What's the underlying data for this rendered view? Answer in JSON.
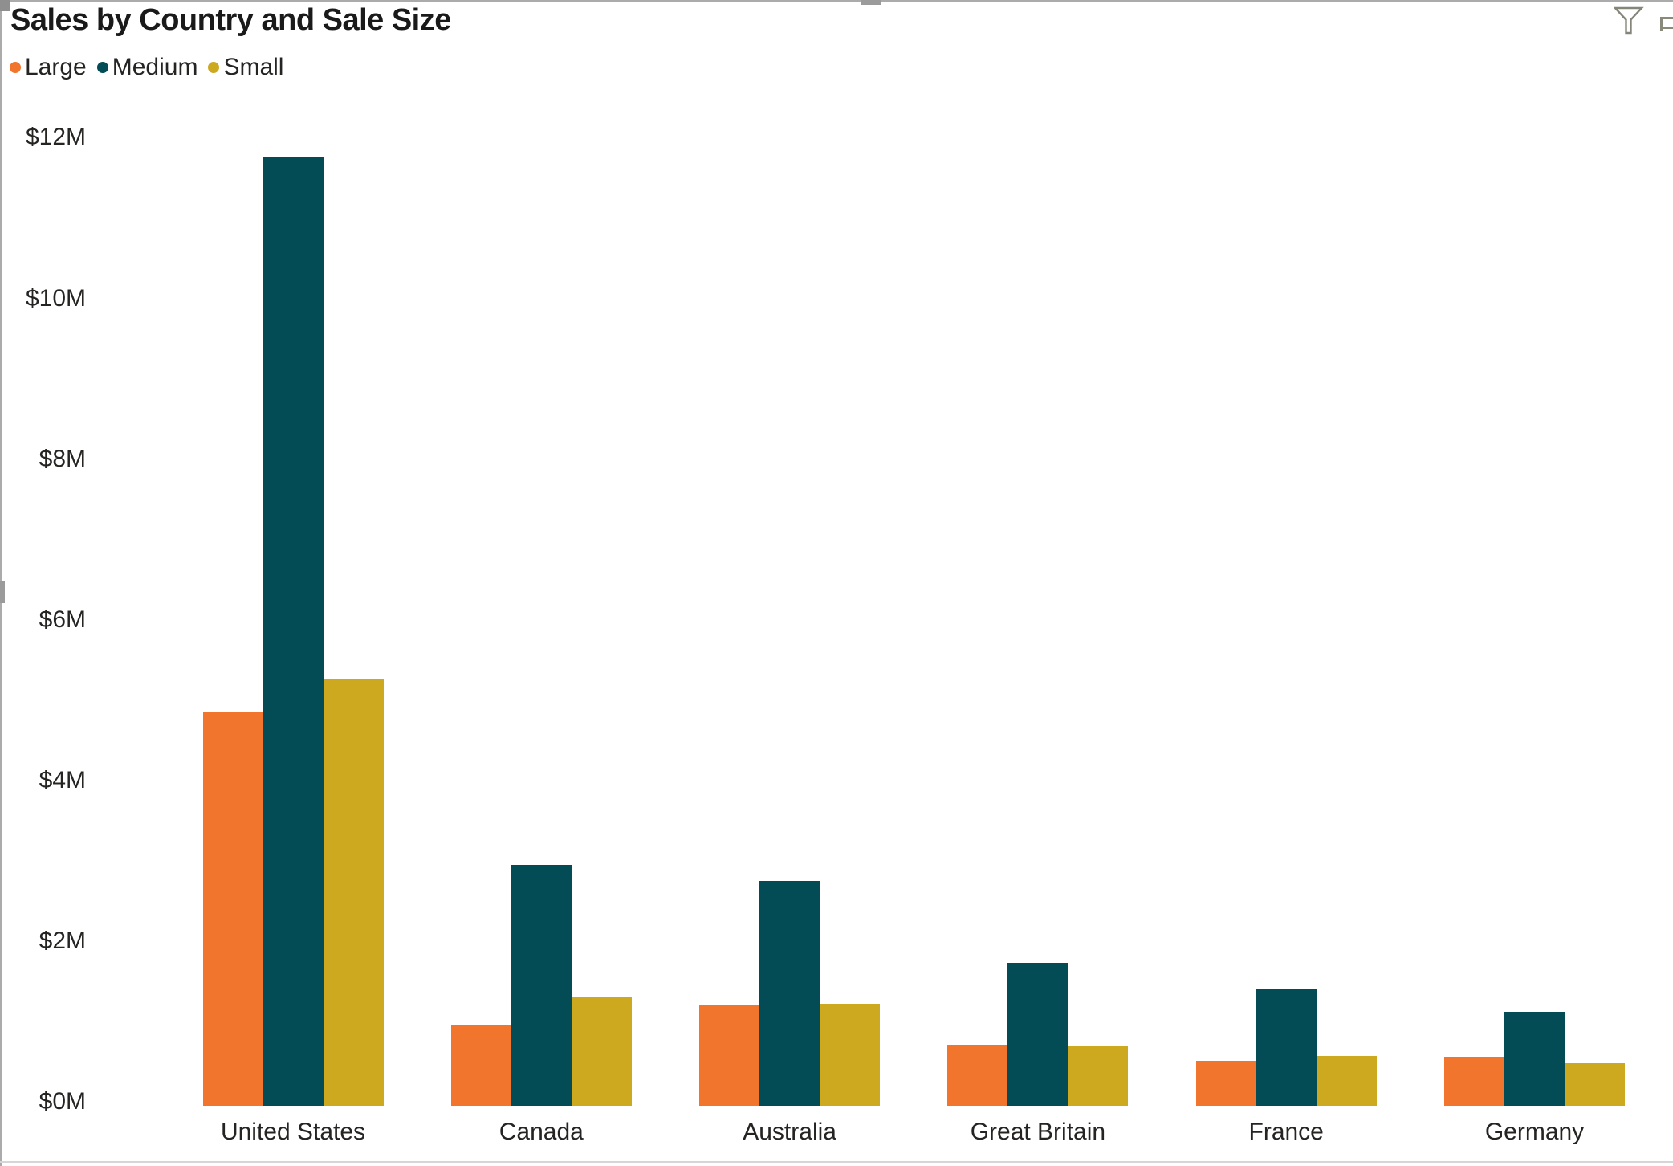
{
  "visual": {
    "title": "Sales by Country and Sale Size"
  },
  "legend": {
    "items": [
      {
        "label": "Large",
        "color": "#F1752C"
      },
      {
        "label": "Medium",
        "color": "#034B55"
      },
      {
        "label": "Small",
        "color": "#CCA91E"
      }
    ]
  },
  "chart_data": {
    "type": "bar",
    "title": "Sales by Country and Sale Size",
    "categories": [
      "United States",
      "Canada",
      "Australia",
      "Great Britain",
      "France",
      "Germany"
    ],
    "series": [
      {
        "name": "Large",
        "color": "#F1752C",
        "values": [
          4.9,
          1.0,
          1.25,
          0.76,
          0.56,
          0.61
        ]
      },
      {
        "name": "Medium",
        "color": "#034B55",
        "values": [
          11.8,
          3.0,
          2.8,
          1.78,
          1.46,
          1.17
        ]
      },
      {
        "name": "Small",
        "color": "#CCA91E",
        "values": [
          5.3,
          1.35,
          1.27,
          0.74,
          0.62,
          0.53
        ]
      }
    ],
    "xlabel": "",
    "ylabel": "",
    "ylim": [
      0,
      12
    ],
    "y_ticks": [
      {
        "value": 0,
        "label": "$0M"
      },
      {
        "value": 2,
        "label": "$2M"
      },
      {
        "value": 4,
        "label": "$4M"
      },
      {
        "value": 6,
        "label": "$6M"
      },
      {
        "value": 8,
        "label": "$8M"
      },
      {
        "value": 10,
        "label": "$10M"
      },
      {
        "value": 12,
        "label": "$12M"
      }
    ],
    "grid": false,
    "legend_position": "top-left"
  }
}
